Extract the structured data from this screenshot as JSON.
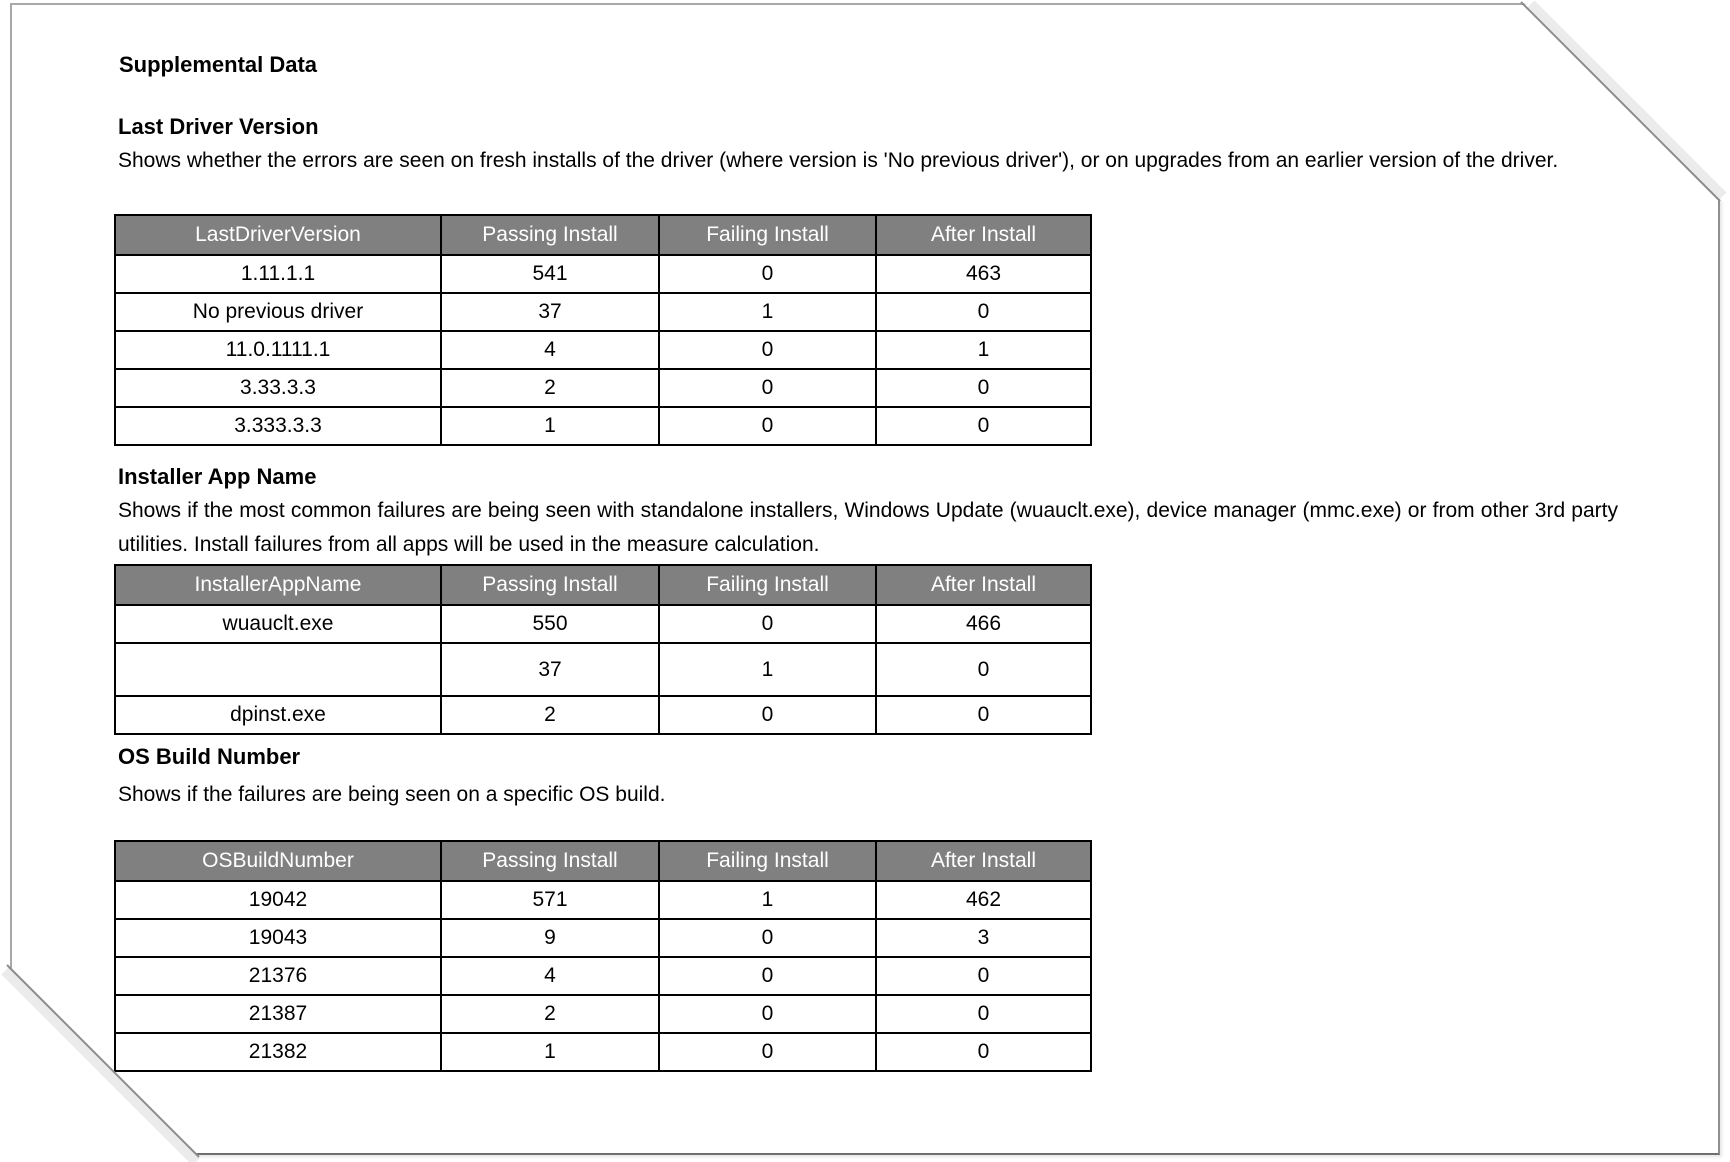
{
  "document": {
    "title": "Supplemental Data",
    "sections": [
      {
        "heading": "Last Driver Version",
        "description": "Shows whether the errors are seen on fresh installs of the driver (where version is 'No previous driver'), or on upgrades from an earlier version of the driver.",
        "table": {
          "headers": [
            "LastDriverVersion",
            "Passing Install",
            "Failing Install",
            "After Install"
          ],
          "rows": [
            [
              "1.11.1.1",
              "541",
              "0",
              "463"
            ],
            [
              "No previous driver",
              "37",
              "1",
              "0"
            ],
            [
              "11.0.1111.1",
              "4",
              "0",
              "1"
            ],
            [
              "3.33.3.3",
              "2",
              "0",
              "0"
            ],
            [
              "3.333.3.3",
              "1",
              "0",
              "0"
            ]
          ]
        }
      },
      {
        "heading": "Installer App Name",
        "description": "Shows if the most common failures are being seen with standalone installers, Windows Update (wuauclt.exe), device manager (mmc.exe) or from other 3rd party utilities. Install failures from all apps will be used in the measure calculation.",
        "table": {
          "headers": [
            "InstallerAppName",
            "Passing Install",
            "Failing Install",
            "After Install"
          ],
          "rows": [
            [
              "wuauclt.exe",
              "550",
              "0",
              "466"
            ],
            [
              "",
              "37",
              "1",
              "0"
            ],
            [
              "dpinst.exe",
              "2",
              "0",
              "0"
            ]
          ]
        }
      },
      {
        "heading": "OS Build Number",
        "description": "Shows if the failures are being seen on a specific OS build.",
        "table": {
          "headers": [
            "OSBuildNumber",
            "Passing Install",
            "Failing Install",
            "After Install"
          ],
          "rows": [
            [
              "19042",
              "571",
              "1",
              "462"
            ],
            [
              "19043",
              "9",
              "0",
              "3"
            ],
            [
              "21376",
              "4",
              "0",
              "0"
            ],
            [
              "21387",
              "2",
              "0",
              "0"
            ],
            [
              "21382",
              "1",
              "0",
              "0"
            ]
          ]
        }
      }
    ],
    "colors": {
      "table_header_bg": "#808080",
      "table_header_text": "#ffffff",
      "table_border": "#000000",
      "page_border": "#a9a9a9"
    }
  }
}
